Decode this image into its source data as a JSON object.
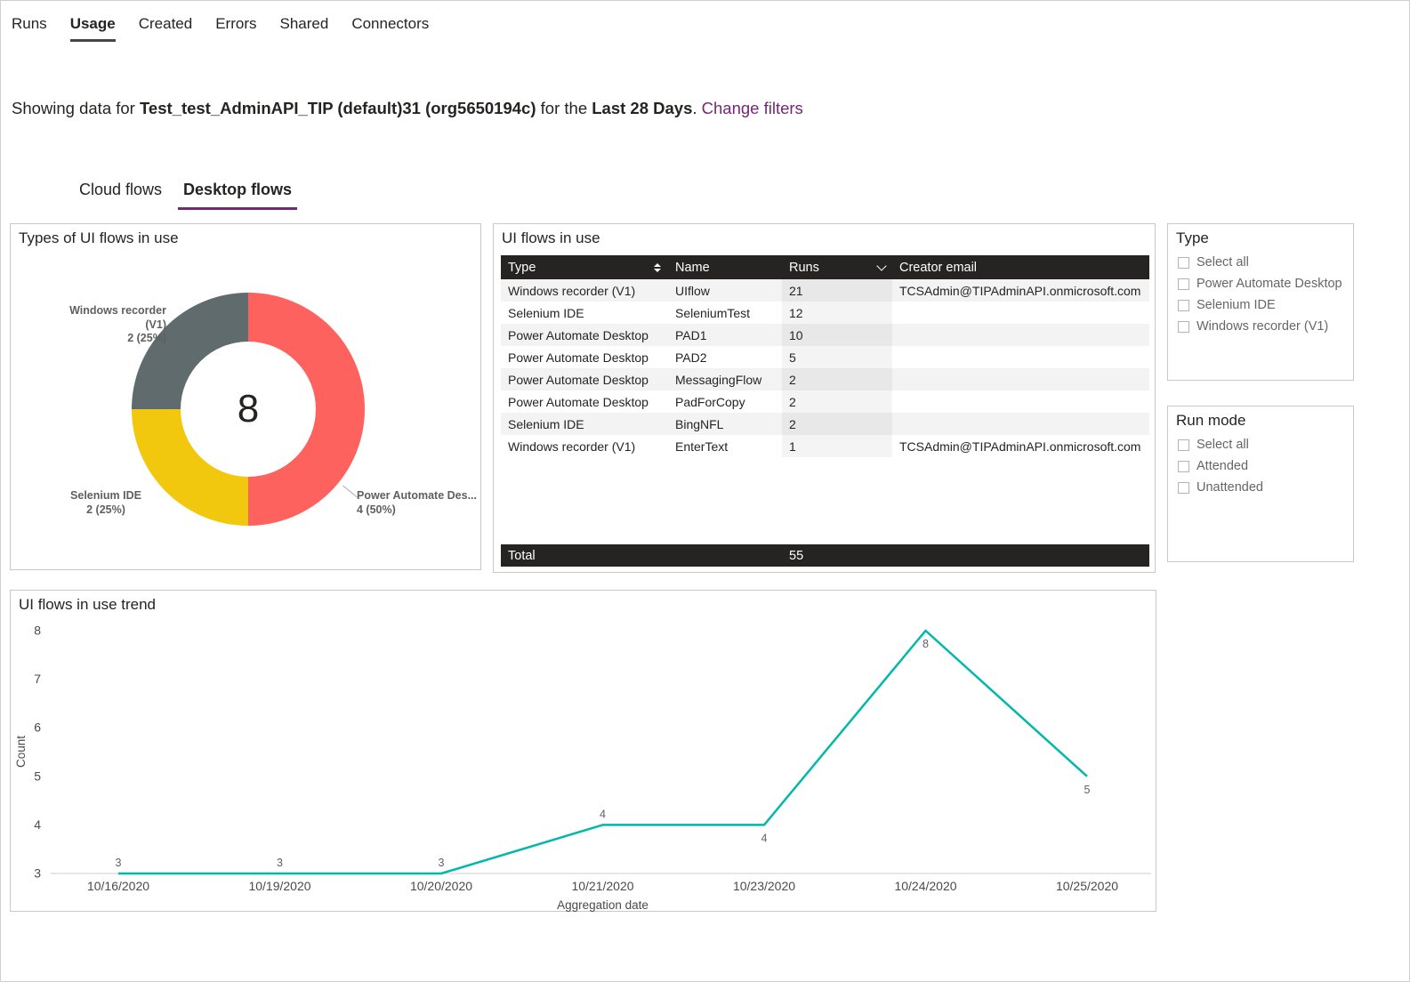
{
  "nav": {
    "tabs": [
      {
        "label": "Runs",
        "active": false
      },
      {
        "label": "Usage",
        "active": true
      },
      {
        "label": "Created",
        "active": false
      },
      {
        "label": "Errors",
        "active": false
      },
      {
        "label": "Shared",
        "active": false
      },
      {
        "label": "Connectors",
        "active": false
      }
    ]
  },
  "filter_summary": {
    "prefix": "Showing data for ",
    "environment": "Test_test_AdminAPI_TIP (default)31 (org5650194c)",
    "middle": " for the ",
    "period": "Last 28 Days",
    "suffix": ". ",
    "link": "Change filters"
  },
  "subtabs": [
    {
      "label": "Cloud flows",
      "active": false
    },
    {
      "label": "Desktop flows",
      "active": true
    }
  ],
  "table_panel": {
    "title": "UI flows in use",
    "columns": [
      "Type",
      "Name",
      "Runs",
      "Creator email"
    ],
    "rows": [
      {
        "type": "Windows recorder (V1)",
        "name": "UIflow",
        "runs": "21",
        "creator": "TCSAdmin@TIPAdminAPI.onmicrosoft.com"
      },
      {
        "type": "Selenium IDE",
        "name": "SeleniumTest",
        "runs": "12",
        "creator": ""
      },
      {
        "type": "Power Automate Desktop",
        "name": "PAD1",
        "runs": "10",
        "creator": ""
      },
      {
        "type": "Power Automate Desktop",
        "name": "PAD2",
        "runs": "5",
        "creator": ""
      },
      {
        "type": "Power Automate Desktop",
        "name": "MessagingFlow",
        "runs": "2",
        "creator": ""
      },
      {
        "type": "Power Automate Desktop",
        "name": "PadForCopy",
        "runs": "2",
        "creator": ""
      },
      {
        "type": "Selenium IDE",
        "name": "BingNFL",
        "runs": "2",
        "creator": ""
      },
      {
        "type": "Windows recorder (V1)",
        "name": "EnterText",
        "runs": "1",
        "creator": "TCSAdmin@TIPAdminAPI.onmicrosoft.com"
      }
    ],
    "total_label": "Total",
    "total_runs": "55"
  },
  "filters": {
    "type": {
      "title": "Type",
      "options": [
        "Select all",
        "Power Automate Desktop",
        "Selenium IDE",
        "Windows recorder (V1)"
      ]
    },
    "run_mode": {
      "title": "Run mode",
      "options": [
        "Select all",
        "Attended",
        "Unattended"
      ]
    }
  },
  "colors": {
    "accent_purple": "#742774",
    "teal": "#01B8AA",
    "red": "#FD625E",
    "yellow": "#F2C80F",
    "gray": "#5F6B6D",
    "table_header": "#252423"
  },
  "chart_data": [
    {
      "type": "pie",
      "title": "Types of UI flows in use",
      "center_label": "8",
      "donut": true,
      "slices": [
        {
          "label": "Power Automate Des...",
          "value": 4,
          "percent": 50,
          "color": "#FD625E",
          "text": "4 (50%)"
        },
        {
          "label": "Selenium IDE",
          "value": 2,
          "percent": 25,
          "color": "#F2C80F",
          "text": "2 (25%)"
        },
        {
          "label": "Windows recorder (V1)",
          "value": 2,
          "percent": 25,
          "color": "#5F6B6D",
          "text": "2 (25%)"
        }
      ]
    },
    {
      "type": "line",
      "title": "UI flows in use trend",
      "x": [
        "10/16/2020",
        "10/19/2020",
        "10/20/2020",
        "10/21/2020",
        "10/23/2020",
        "10/24/2020",
        "10/25/2020"
      ],
      "values": [
        3,
        3,
        3,
        4,
        4,
        8,
        5
      ],
      "xlabel": "Aggregation date",
      "ylabel": "Count",
      "ylim": [
        3,
        8
      ],
      "yticks": [
        3,
        4,
        5,
        6,
        7,
        8
      ],
      "grid": false,
      "line_color": "#01B8AA",
      "label_positions": [
        "above",
        "above",
        "above",
        "above",
        "below",
        "below",
        "below"
      ]
    }
  ]
}
